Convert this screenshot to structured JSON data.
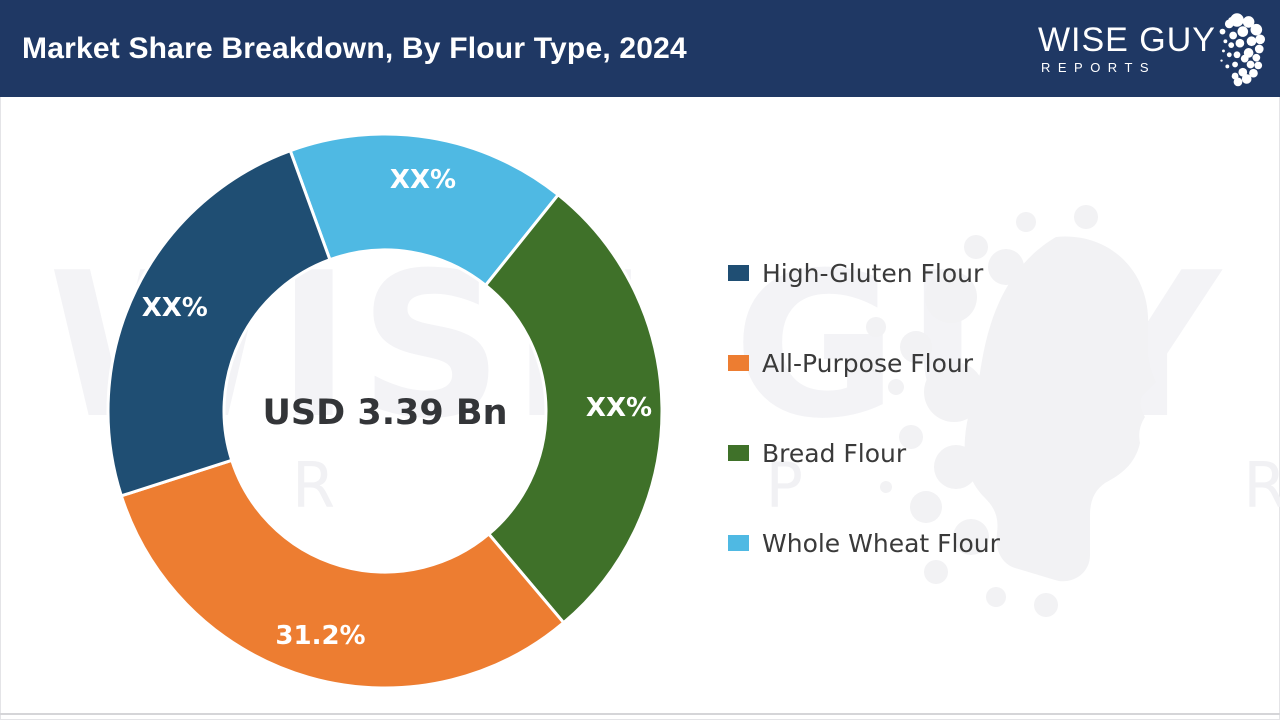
{
  "header": {
    "title": "Market Share Breakdown, By Flour Type, 2024",
    "logo": {
      "line1": "WISE GUY",
      "line2": "REPORTS"
    }
  },
  "watermark": {
    "line1": "WISE GUY",
    "line2": "R E P O R T S"
  },
  "chart_data": {
    "type": "donut",
    "title": "Market Share Breakdown, By Flour Type, 2024",
    "center_label": "USD 3.39 Bn",
    "start_angle_deg": -20,
    "direction": "clockwise",
    "inner_radius_ratio": 0.58,
    "segments": [
      {
        "name": "Whole Wheat Flour",
        "value_pct": 16.3,
        "display_label": "XX%",
        "color": "#4fb9e3"
      },
      {
        "name": "Bread Flour",
        "value_pct": 28.1,
        "display_label": "XX%",
        "color": "#3f7129"
      },
      {
        "name": "All-Purpose Flour",
        "value_pct": 31.2,
        "display_label": "31.2%",
        "color": "#ed7d31"
      },
      {
        "name": "High-Gluten Flour",
        "value_pct": 24.4,
        "display_label": "XX%",
        "color": "#1f4e73"
      }
    ],
    "legend": [
      {
        "label": "High-Gluten Flour",
        "color": "#1f4e73"
      },
      {
        "label": "All-Purpose Flour",
        "color": "#ed7d31"
      },
      {
        "label": "Bread Flour",
        "color": "#3f7129"
      },
      {
        "label": "Whole Wheat Flour",
        "color": "#4fb9e3"
      }
    ],
    "legend_position": "right",
    "colors": {
      "header_bg": "#1f3864",
      "page_bg": "#ffffff",
      "label_text": "#ffffff",
      "center_text": "#333538",
      "legend_text": "#3a3a3a",
      "watermark": "#f3f3f6"
    }
  }
}
